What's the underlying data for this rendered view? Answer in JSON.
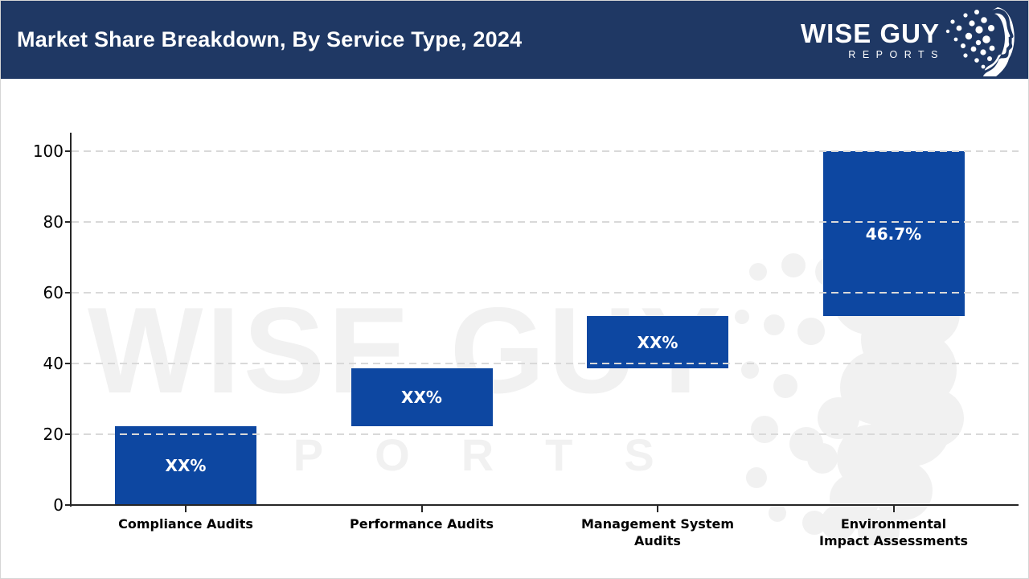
{
  "header": {
    "title": "Market Share Breakdown, By Service Type, 2024",
    "logo": {
      "line1": "WISE GUY",
      "line2": "REPORTS"
    }
  },
  "watermark": {
    "line1": "WISE GUY",
    "line2": "REPORTS"
  },
  "colors": {
    "header_bg": "#1f3864",
    "bar": "#0d47a1",
    "grid": "#d9d9d9",
    "axis": "#262626",
    "watermark": "#f1f1f1",
    "bar_label_text": "#ffffff"
  },
  "chart_data": {
    "type": "bar",
    "subtype": "waterfall-stacked-percentage",
    "title": "Market Share Breakdown, By Service Type, 2024",
    "xlabel": "",
    "ylabel": "",
    "ylim": [
      0,
      105
    ],
    "yticks": [
      0,
      20,
      40,
      60,
      80,
      100
    ],
    "grid": "dashed-horizontal",
    "legend": "none",
    "categories": [
      "Compliance Audits",
      "Performance Audits",
      "Management System\nAudits",
      "Environmental\nImpact Assessments"
    ],
    "segments": [
      {
        "category": "Compliance Audits",
        "start": 0,
        "end": 22.2,
        "value_label": "XX%"
      },
      {
        "category": "Performance Audits",
        "start": 22.2,
        "end": 38.6,
        "value_label": "XX%"
      },
      {
        "category": "Management System\nAudits",
        "start": 38.6,
        "end": 53.3,
        "value_label": "XX%"
      },
      {
        "category": "Environmental\nImpact Assessments",
        "start": 53.3,
        "end": 100,
        "value_label": "46.7%"
      }
    ]
  }
}
